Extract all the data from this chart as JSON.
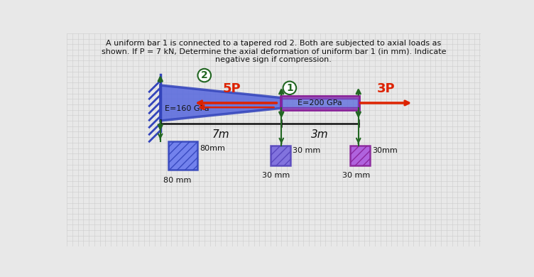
{
  "title_line1": "A uniform bar 1 is connected to a tapered rod 2. Both are subjected to axial loads as",
  "title_line2": "shown. If P = 7 kN, Determine the axial deformation of uniform bar 1 (in mm). Indicate",
  "title_line3": "negative sign if compression.",
  "bg_color": "#e8e8e8",
  "grid_color": "#cccccc",
  "text_color": "#111111",
  "blue_bar": "#5566dd",
  "blue_bar_edge": "#3344bb",
  "purple_bar": "#9944cc",
  "purple_bar_edge": "#7722aa",
  "arrow_red": "#dd2200",
  "arrow_green": "#226622",
  "wall_color": "#3344bb",
  "cs_left_fill": "#6677ee",
  "cs_left_edge": "#3344bb",
  "cs_mid_fill": "#7766dd",
  "cs_mid_edge": "#5544bb",
  "cs_right_fill": "#aa55dd",
  "cs_right_edge": "#882299",
  "e2_box_fill": "#cc88ff",
  "e2_box_edge": "#882299",
  "load_5P": "5P",
  "load_3P": "3P",
  "label_E1": "E=160 GPa",
  "label_E2": "E=200 GPa",
  "label_7m": "7m",
  "label_3m": "3m",
  "label_80mm_r": "80mm",
  "label_80mm_b": "80 mm",
  "label_30mm_r1": "30 mm",
  "label_30mm_b1": "30 mm",
  "label_30mm_r2": "30mm",
  "label_30mm_b2": "30 mm",
  "circ_seg2": "2",
  "circ_seg1": "1"
}
